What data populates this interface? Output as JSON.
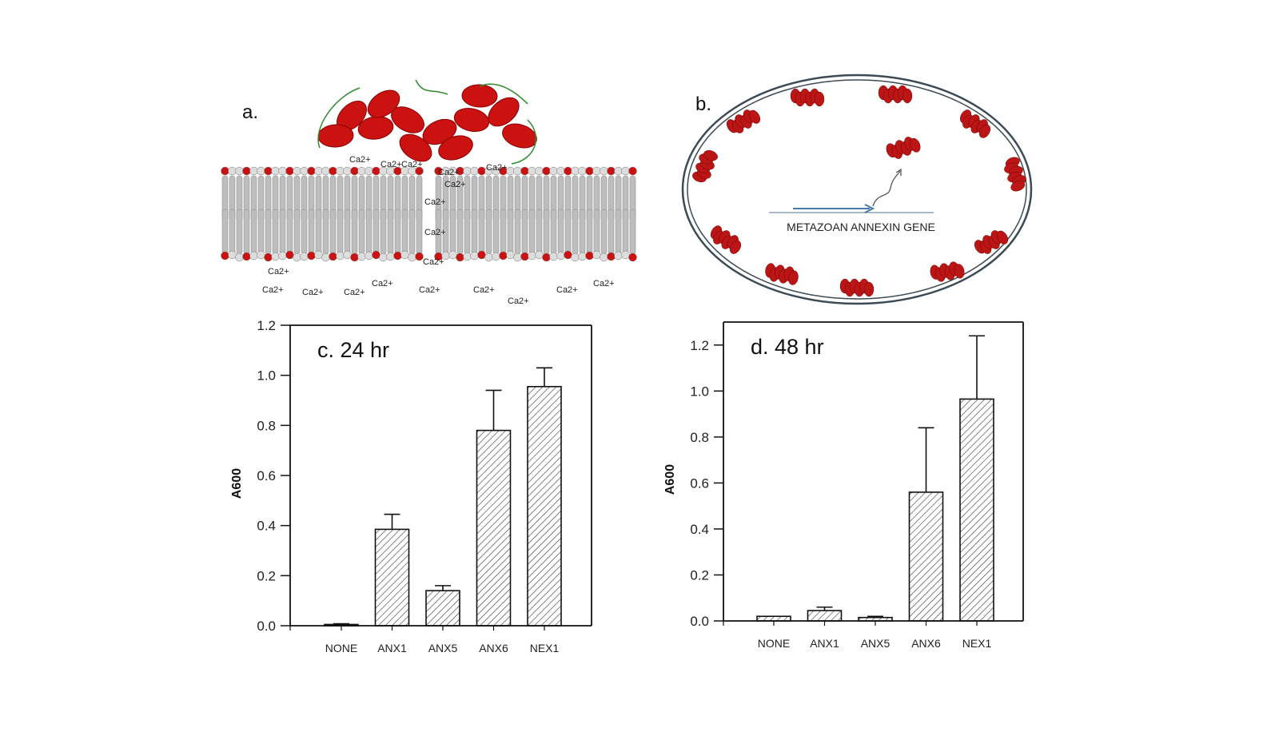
{
  "panel_a": {
    "label": "a.",
    "ion_labels": [
      "Ca2+",
      "Ca2+",
      "Ca2+",
      "Ca2+",
      "Ca2+",
      "Ca2+",
      "Ca2+",
      "Ca2+",
      "Ca2+",
      "Ca2+",
      "Ca2+",
      "Ca2+",
      "Ca2+",
      "Ca2+",
      "Ca2+",
      "Ca2+",
      "Ca2+",
      "Ca2+",
      "Ca2+"
    ],
    "colors": {
      "protein": "#cc1111",
      "loop": "#2e8b2e",
      "lipid": "#bdbdbd",
      "headgroup": "#cc1111"
    }
  },
  "panel_b": {
    "label": "b.",
    "gene_label": "METAZOAN ANNEXIN GENE",
    "colors": {
      "cell": "#3b4a55",
      "arrow": "#4a78a8",
      "protein": "#bb1515"
    }
  },
  "chart_data": [
    {
      "type": "bar",
      "title": "c. 24 hr",
      "ylabel": "A600",
      "xlabel": "",
      "categories": [
        "NONE",
        "ANX1",
        "ANX5",
        "ANX6",
        "NEX1"
      ],
      "values": [
        0.005,
        0.385,
        0.14,
        0.78,
        0.955
      ],
      "error_upper": [
        0.008,
        0.445,
        0.16,
        0.94,
        1.03
      ],
      "ylim": [
        0,
        1.2
      ],
      "yticks": [
        "0.0",
        "0.2",
        "0.4",
        "0.6",
        "0.8",
        "1.0",
        "1.2"
      ],
      "bar_fill": "diagonal hatch",
      "grid": false
    },
    {
      "type": "bar",
      "title": "d. 48 hr",
      "ylabel": "A600",
      "xlabel": "",
      "categories": [
        "NONE",
        "ANX1",
        "ANX5",
        "ANX6",
        "NEX1"
      ],
      "values": [
        0.02,
        0.045,
        0.015,
        0.56,
        0.965
      ],
      "error_upper": [
        0.02,
        0.06,
        0.02,
        0.84,
        1.24
      ],
      "ylim": [
        0,
        1.3
      ],
      "yticks": [
        "0.0",
        "0.2",
        "0.4",
        "0.6",
        "0.8",
        "1.0",
        "1.2"
      ],
      "bar_fill": "diagonal hatch",
      "grid": false
    }
  ]
}
